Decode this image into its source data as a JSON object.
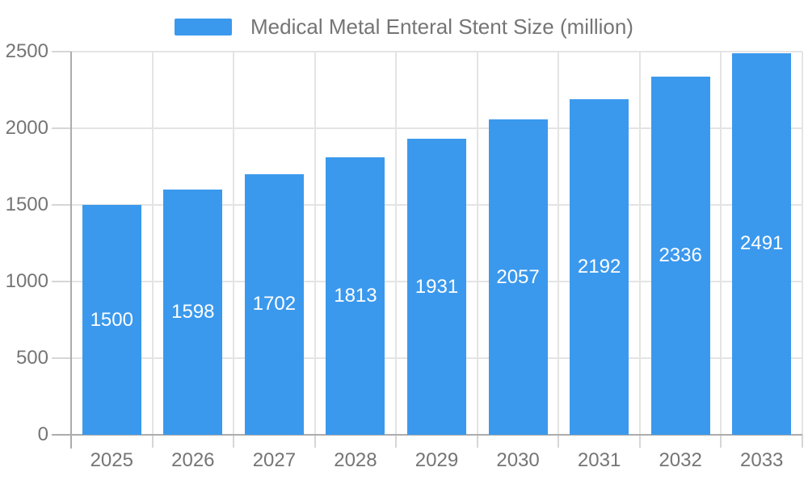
{
  "legend": {
    "label": "Medical Metal Enteral Stent Size (million)",
    "swatch_color": "#3b99ed"
  },
  "chart_data": {
    "type": "bar",
    "title": "Medical Metal Enteral Stent Size (million)",
    "categories": [
      "2025",
      "2026",
      "2027",
      "2028",
      "2029",
      "2030",
      "2031",
      "2032",
      "2033"
    ],
    "values": [
      1500,
      1598,
      1702,
      1813,
      1931,
      2057,
      2192,
      2336,
      2491
    ],
    "series": [
      {
        "name": "Medical Metal Enteral Stent Size (million)",
        "values": [
          1500,
          1598,
          1702,
          1813,
          1931,
          2057,
          2192,
          2336,
          2491
        ]
      }
    ],
    "xlabel": "",
    "ylabel": "",
    "ylim": [
      0,
      2500
    ],
    "yticks": [
      0,
      500,
      1000,
      1500,
      2000,
      2500
    ],
    "grid": true,
    "legend_position": "top",
    "bar_color": "#3b99ed",
    "value_label_color": "#ffffff",
    "axis_text_color": "#757575"
  }
}
